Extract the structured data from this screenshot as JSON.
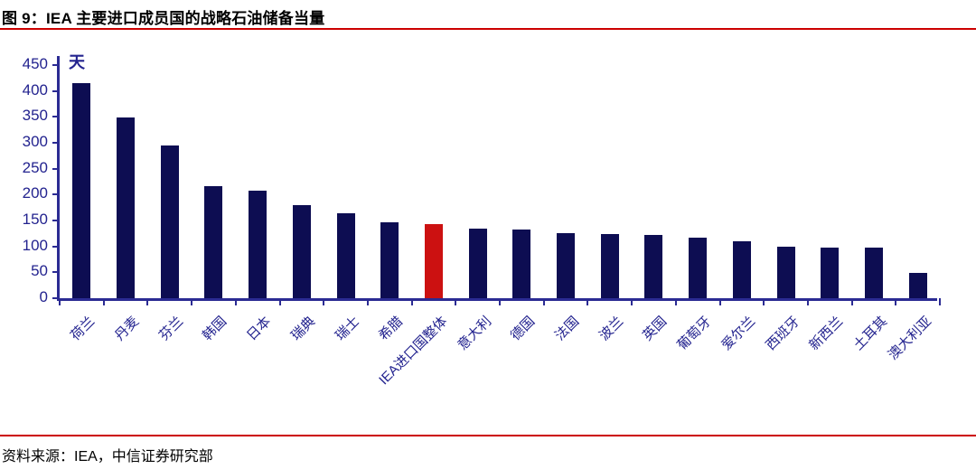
{
  "header": {
    "title": "图 9：IEA 主要进口成员国的战略石油储备当量"
  },
  "footer": {
    "source": "资料来源：IEA，中信证券研究部"
  },
  "colors": {
    "bar_navy": "#0d0d52",
    "highlight_red": "#cc1111",
    "axis_navy": "#2b2b93",
    "rule_red": "#cc0000",
    "text_black": "#000000"
  },
  "chart_data": {
    "type": "bar",
    "title": "图 9：IEA 主要进口成员国的战略石油储备当量",
    "xlabel": "",
    "ylabel": "天",
    "ylim": [
      0,
      450
    ],
    "y_ticks": [
      0,
      50,
      100,
      150,
      200,
      250,
      300,
      350,
      400,
      450
    ],
    "grid": false,
    "legend": false,
    "categories": [
      "荷兰",
      "丹麦",
      "芬兰",
      "韩国",
      "日本",
      "瑞典",
      "瑞士",
      "希腊",
      "IEA进口国整体",
      "意大利",
      "德国",
      "法国",
      "波兰",
      "英国",
      "葡萄牙",
      "爱尔兰",
      "西班牙",
      "新西兰",
      "土耳其",
      "澳大利亚"
    ],
    "values": [
      415,
      348,
      294,
      216,
      208,
      180,
      164,
      147,
      143,
      134,
      132,
      126,
      124,
      122,
      116,
      110,
      99,
      97,
      97,
      49
    ],
    "highlight_category": "IEA进口国整体",
    "highlight_index": 8
  }
}
